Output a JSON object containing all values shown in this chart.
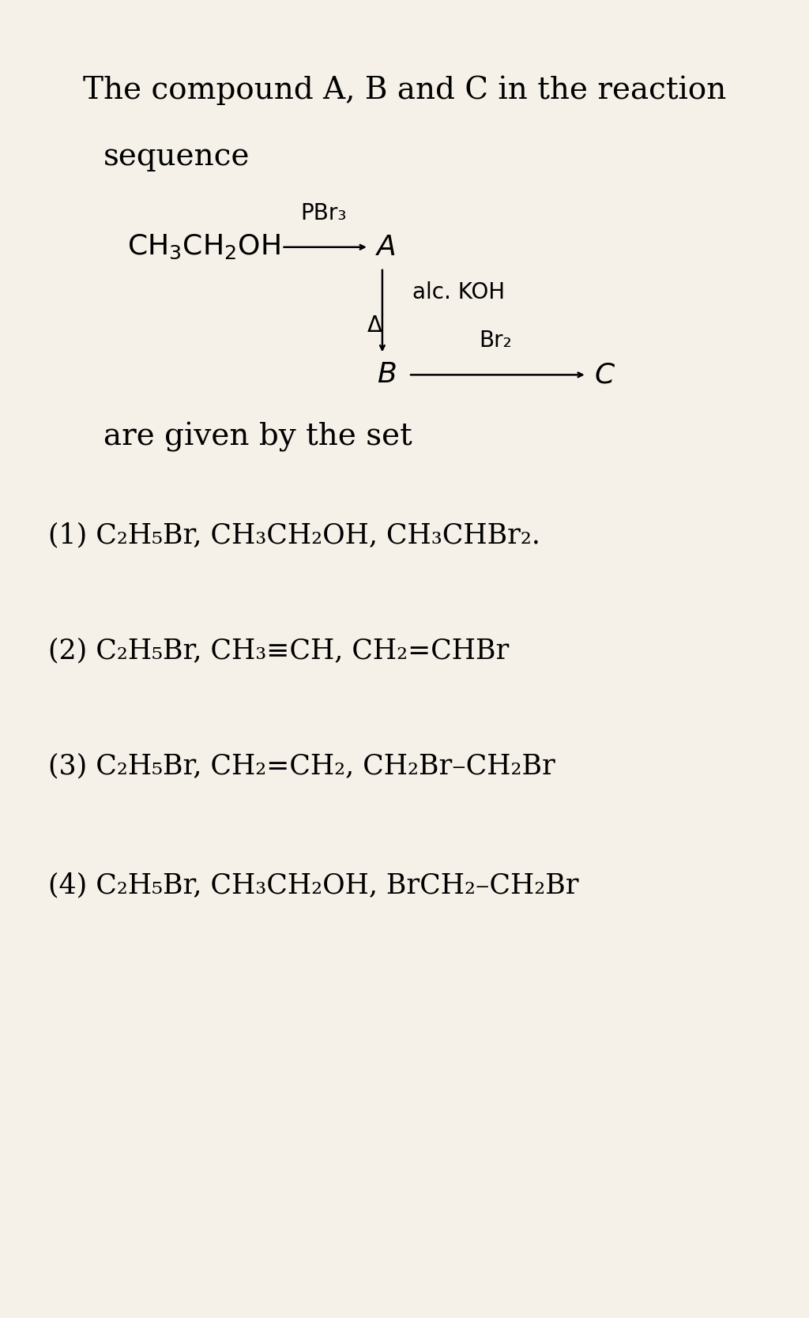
{
  "background_color": "#f5f0e8",
  "title_line1": "The compound A, B and C in the reaction",
  "title_line2": "sequence",
  "reaction_line": "CH₃CH₂OH",
  "arrow1_label": "PBr₃",
  "node_A": "A",
  "arrow2_label_top": "alc. KOH",
  "arrow2_label_bot": "Δ",
  "node_B": "B",
  "arrow3_label": "Br₂",
  "node_C": "C",
  "set_intro": "are given by the set",
  "options": [
    "(1) C₂H₅Br, CH₃CH₂OH, CH₃CHBr₂.",
    "(2) C₂H₅Br, CH₃≡CH, CH₂=CHBr",
    "(3) C₂H₅Br, CH₂=CH₂, CH₂Br–CH₂Br",
    "(4) C₂H₅Br, CH₃CH₂OH, BrCH₂–CH₂Br"
  ],
  "font_size_title": 28,
  "font_size_text": 26,
  "font_size_option": 25,
  "font_size_arrow_label": 20
}
